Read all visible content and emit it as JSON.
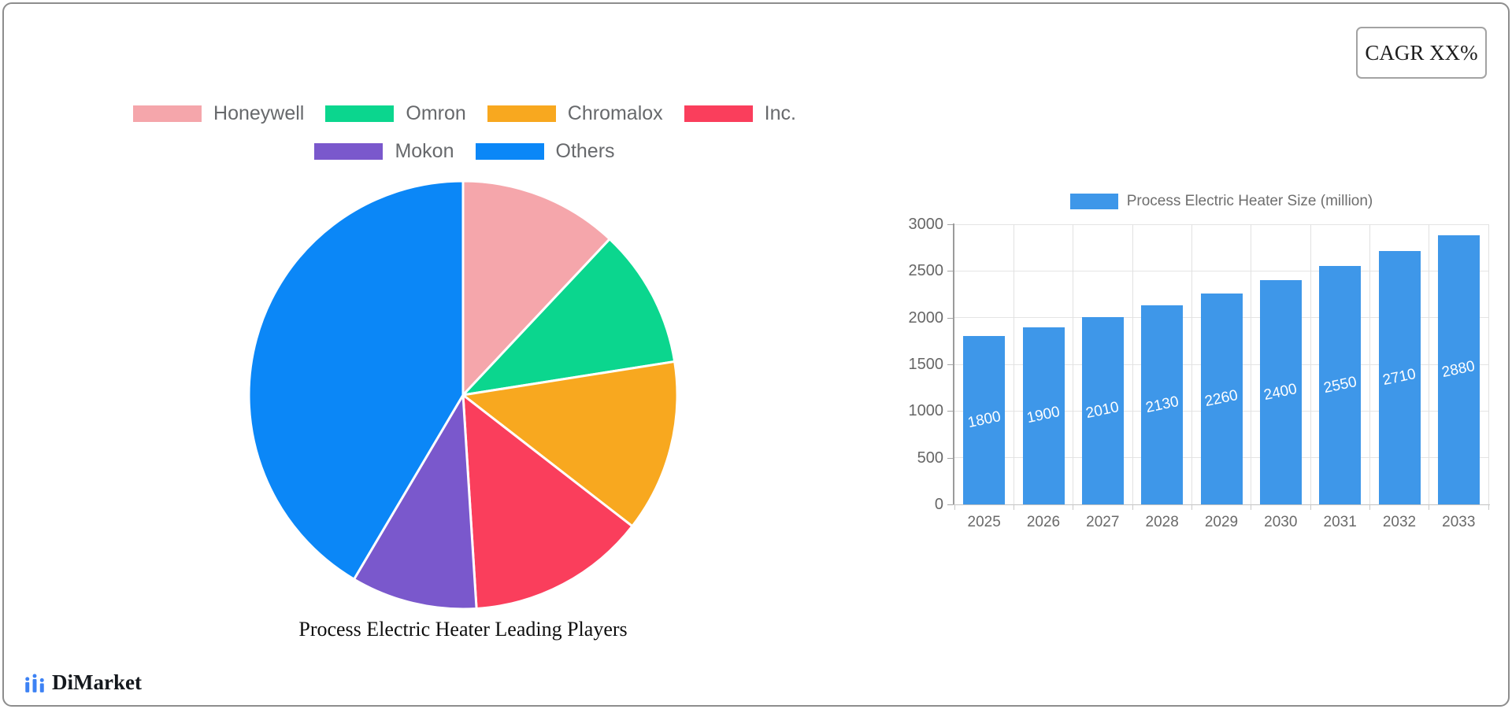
{
  "cagr_box": {
    "label": "CAGR XX%"
  },
  "brand": {
    "name": "DiMarket",
    "icon_color": "#3d82f4"
  },
  "pie_section": {
    "title": "Process Electric Heater Leading Players",
    "legend": [
      {
        "label": "Honeywell",
        "color": "#F5A6AB"
      },
      {
        "label": "Omron",
        "color": "#0BD68E"
      },
      {
        "label": "Chromalox",
        "color": "#F8A81F"
      },
      {
        "label": "Inc.",
        "color": "#FA3E5C"
      },
      {
        "label": "Mokon",
        "color": "#7A58CC"
      },
      {
        "label": "Others",
        "color": "#0B87F7"
      }
    ]
  },
  "bar_section": {
    "legend_label": "Process Electric Heater Size (million)",
    "bar_color": "#3E97E9"
  },
  "chart_data": [
    {
      "type": "pie",
      "title": "Process Electric Heater Leading Players",
      "labels": [
        "Honeywell",
        "Omron",
        "Chromalox",
        "Inc.",
        "Mokon",
        "Others"
      ],
      "values": [
        12,
        10.5,
        13,
        13.5,
        9.5,
        41.5
      ],
      "colors": [
        "#F5A6AB",
        "#0BD68E",
        "#F8A81F",
        "#FA3E5C",
        "#7A58CC",
        "#0B87F7"
      ],
      "start_angle_deg": 0,
      "direction": "clockwise",
      "legend_position": "top",
      "note": "values are percent shares estimated from slice angles"
    },
    {
      "type": "bar",
      "title": "Process Electric Heater Size (million)",
      "categories": [
        "2025",
        "2026",
        "2027",
        "2028",
        "2029",
        "2030",
        "2031",
        "2032",
        "2033"
      ],
      "values": [
        1800,
        1900,
        2010,
        2130,
        2260,
        2400,
        2550,
        2710,
        2880
      ],
      "ylim": [
        0,
        3000
      ],
      "y_ticks": [
        0,
        500,
        1000,
        1500,
        2000,
        2500,
        3000
      ],
      "grid": true,
      "legend_position": "top",
      "bar_color": "#3E97E9",
      "value_labels": "inside bars, white, slightly rotated"
    }
  ]
}
